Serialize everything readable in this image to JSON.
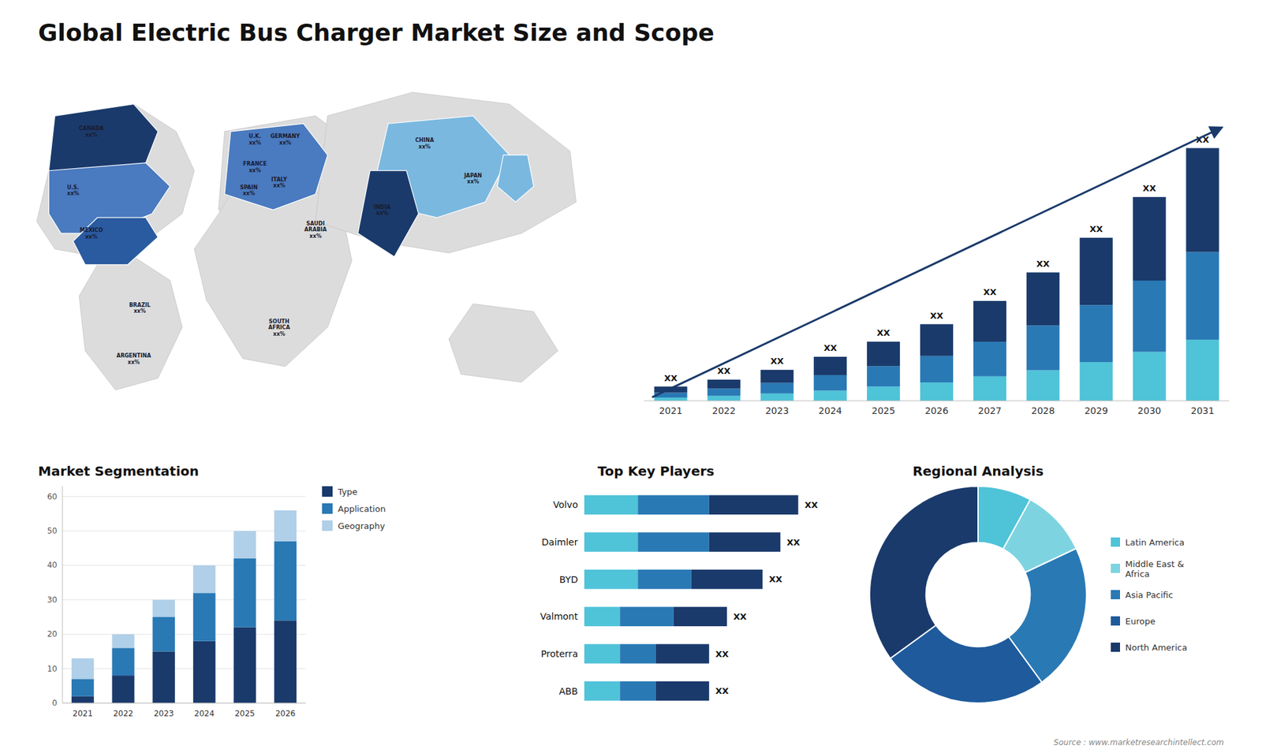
{
  "title": "Global Electric Bus Charger Market Size and Scope",
  "annotations": [
    "Source : www.marketresearchintellect.com"
  ],
  "chart_data": [
    {
      "type": "map",
      "annotations": [
        "CANADA\nxx%",
        "U.S.\nxx%",
        "MEXICO\nxx%",
        "BRAZIL\nxx%",
        "ARGENTINA\nxx%",
        "U.K.\nxx%",
        "FRANCE\nxx%",
        "SPAIN\nxx%",
        "GERMANY\nxx%",
        "ITALY\nxx%",
        "SAUDI\nARABIA\nxx%",
        "SOUTH\nAFRICA\nxx%",
        "CHINA\nxx%",
        "INDIA\nxx%",
        "JAPAN\nxx%"
      ]
    },
    {
      "type": "bar",
      "stacked": true,
      "categories": [
        "2021",
        "2022",
        "2023",
        "2024",
        "2025",
        "2026",
        "2027",
        "2028",
        "2029",
        "2030",
        "2031"
      ],
      "series": [
        {
          "color": "#4fc3d8",
          "values": [
            0.8,
            1.2,
            1.8,
            2.5,
            3.5,
            4.5,
            6.0,
            7.5,
            9.5,
            12.0,
            15.0
          ]
        },
        {
          "color": "#2979b5",
          "values": [
            1.2,
            1.8,
            2.6,
            3.8,
            5.0,
            6.5,
            8.5,
            11.0,
            14.0,
            17.5,
            21.5
          ]
        },
        {
          "color": "#1a3a6b",
          "values": [
            1.5,
            2.2,
            3.2,
            4.5,
            6.0,
            7.8,
            10.0,
            13.0,
            16.5,
            20.5,
            25.5
          ]
        }
      ],
      "ylim": [
        0,
        80.6
      ],
      "tick_labels": "x",
      "annotations": [
        "XX",
        "XX",
        "XX",
        "XX",
        "XX",
        "XX",
        "XX",
        "XX",
        "XX",
        "XX",
        "XX"
      ]
    },
    {
      "type": "bar",
      "title": "Market Segmentation",
      "stacked": true,
      "categories": [
        "2021",
        "2022",
        "2023",
        "2024",
        "2025",
        "2026"
      ],
      "series": [
        {
          "name": "Type",
          "color": "#1a3a6b",
          "values": [
            2,
            8,
            15,
            18,
            22,
            24
          ]
        },
        {
          "name": "Application",
          "color": "#2979b5",
          "values": [
            5,
            8,
            10,
            14,
            20,
            23
          ]
        },
        {
          "name": "Geography",
          "color": "#b0cfe8",
          "values": [
            6,
            4,
            5,
            8,
            8,
            9
          ]
        }
      ],
      "ylim": [
        0,
        63
      ],
      "yticks": [
        0,
        10,
        20,
        30,
        40,
        50,
        60
      ],
      "grid": true,
      "legend": "right"
    },
    {
      "type": "bar",
      "title": "Top Key Players",
      "orientation": "horizontal",
      "stacked": true,
      "categories": [
        "Volvo",
        "Daimler",
        "BYD",
        "Valmont",
        "Proterra",
        "ABB"
      ],
      "series": [
        {
          "color": "#4fc3d8",
          "values": [
            3,
            3,
            3,
            2,
            2,
            2
          ]
        },
        {
          "color": "#2979b5",
          "values": [
            4,
            4,
            3,
            3,
            2,
            2
          ]
        },
        {
          "color": "#1a3a6b",
          "values": [
            5,
            4,
            4,
            3,
            3,
            3
          ]
        }
      ],
      "xlim": [
        -6.6,
        14.64
      ],
      "tick_labels": "y",
      "annotations": [
        "XX",
        "XX",
        "XX",
        "XX",
        "XX",
        "XX"
      ]
    },
    {
      "type": "donut",
      "title": "Regional Analysis",
      "categories": [
        "Latin America",
        "Middle East &\nAfrica",
        "Asia Pacific",
        "Europe",
        "North America"
      ],
      "values": [
        8,
        10,
        22,
        25,
        35
      ],
      "colors": [
        "#4fc3d8",
        "#7dd4e0",
        "#2979b5",
        "#1e5a9c",
        "#1a3a6b"
      ],
      "legend": "right"
    }
  ]
}
